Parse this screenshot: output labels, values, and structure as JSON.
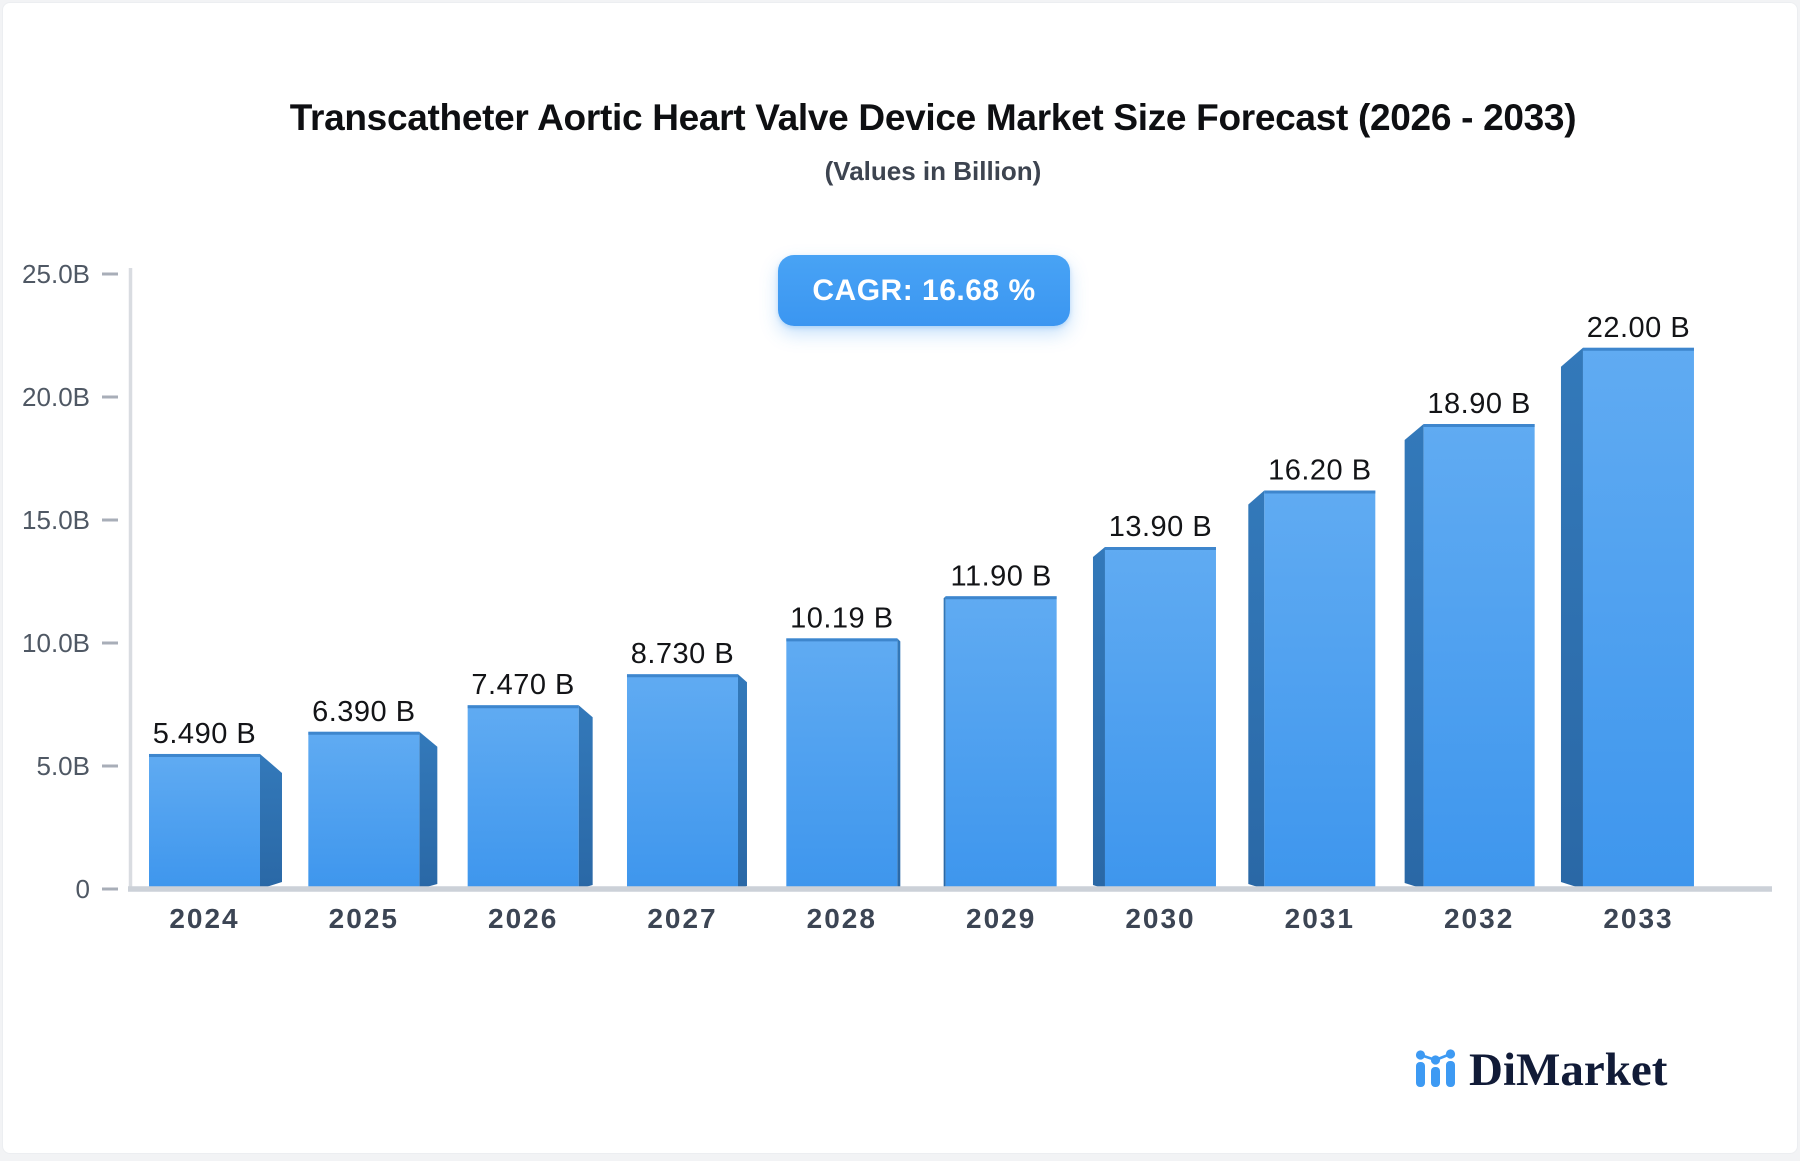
{
  "header": {
    "title": "Transcatheter Aortic Heart Valve Device Market Size Forecast (2026 - 2033)",
    "subtitle": "(Values in Billion)"
  },
  "badge": {
    "label": "CAGR: 16.68 %"
  },
  "chart_data": {
    "type": "bar",
    "title": "Transcatheter Aortic Heart Valve Device Market Size Forecast (2026 - 2033)",
    "subtitle": "(Values in Billion)",
    "cagr_percent": 16.68,
    "categories": [
      "2024",
      "2025",
      "2026",
      "2027",
      "2028",
      "2029",
      "2030",
      "2031",
      "2032",
      "2033"
    ],
    "values": [
      5.49,
      6.39,
      7.47,
      8.73,
      10.19,
      11.9,
      13.9,
      16.2,
      18.9,
      22.0
    ],
    "value_labels": [
      "5.490 B",
      "6.390 B",
      "7.470 B",
      "8.730 B",
      "10.19 B",
      "11.90 B",
      "13.90 B",
      "16.20 B",
      "18.90 B",
      "22.00 B"
    ],
    "ylim": [
      0,
      25
    ],
    "y_ticks": [
      {
        "value": 0,
        "label": "0"
      },
      {
        "value": 5,
        "label": "5.0B"
      },
      {
        "value": 10,
        "label": "10.0B"
      },
      {
        "value": 15,
        "label": "15.0B"
      },
      {
        "value": 20,
        "label": "20.0B"
      },
      {
        "value": 25,
        "label": "25.0B"
      }
    ],
    "grid": false,
    "legend": false,
    "bar_style": "3d"
  },
  "theme": {
    "bar_face_top": "#60ABF2",
    "bar_face_bottom": "#3E96ED",
    "bar_side_top": "#3379BA",
    "bar_side_bottom": "#2A68A6",
    "bar_top_edge": "#3B82C9",
    "axis_line": "#D9DCE1",
    "baseline": "#CCD1D8",
    "tick_text": "#4F5864",
    "year_text": "#3C4554",
    "value_text": "#131417",
    "title_text": "#0E0F12",
    "subtitle_text": "#3D4450",
    "badge_bg": "#3E9CF3",
    "badge_text": "#FFFFFF",
    "logo_blue": "#3D9AF3",
    "logo_text": "#111B37",
    "card_bg": "#FFFFFF",
    "page_bg": "#F2F3F5"
  },
  "logo": {
    "icon": "bar-chart-trend-icon",
    "text": "DiMarket"
  }
}
